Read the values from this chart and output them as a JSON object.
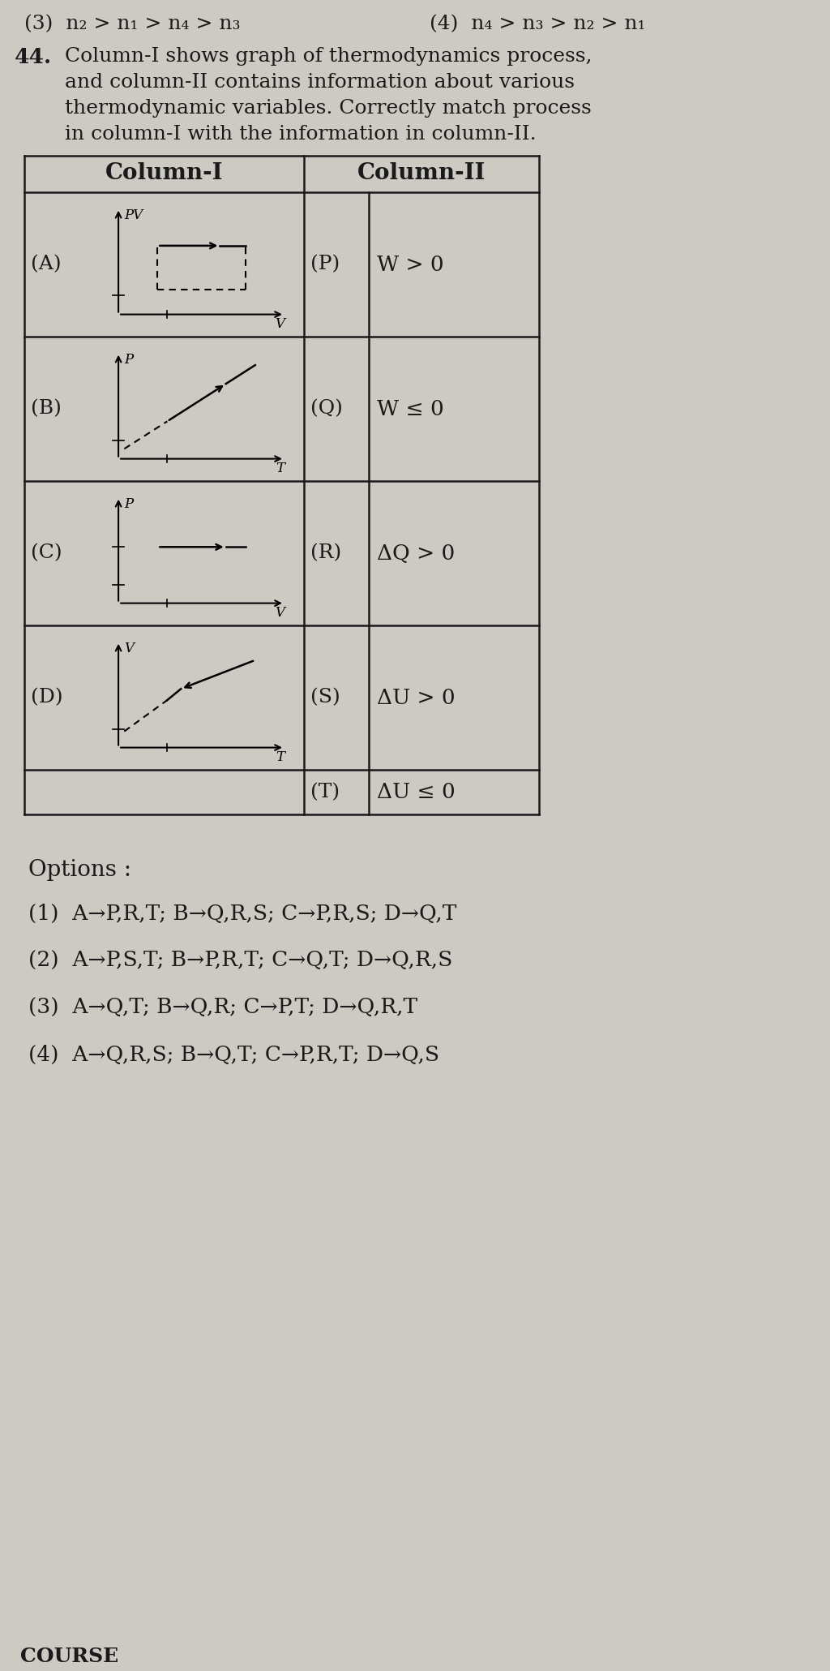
{
  "bg_color": "#cdc9c3",
  "text_color": "#1a1a1a",
  "header_col1": "Column-I",
  "header_col2": "Column-II",
  "row_labels_left": [
    "(A)",
    "(B)",
    "(C)",
    "(D)"
  ],
  "col2_labels": [
    "(P)",
    "(Q)",
    "(R)",
    "(S)",
    "(T)"
  ],
  "col2_values": [
    "W > 0",
    "W ≤ 0",
    "ΔQ > 0",
    "ΔU > 0",
    "ΔU ≤ 0"
  ],
  "options_title": "Options :",
  "options": [
    "(1)  A→P,R,T; B→Q,R,S; C→P,R,S; D→Q,T",
    "(2)  A→P,S,T; B→P,R,T; C→Q,T; D→Q,R,S",
    "(3)  A→Q,T; B→Q,R; C→P,T; D→Q,R,T",
    "(4)  A→Q,R,S; B→Q,T; C→P,R,T; D→Q,S"
  ],
  "top_text": "(3)  n₂ > n₁ > n₄ > n₃",
  "top_text2": "(4)  n₄ > n₃ > n₂ > n₁",
  "course_text": "COURSE",
  "q44_lines": [
    "Column-I shows graph of thermodynamics process,",
    "and column-II contains information about various",
    "thermodynamic variables. Correctly match process",
    "in column-I with the information in column-II."
  ]
}
